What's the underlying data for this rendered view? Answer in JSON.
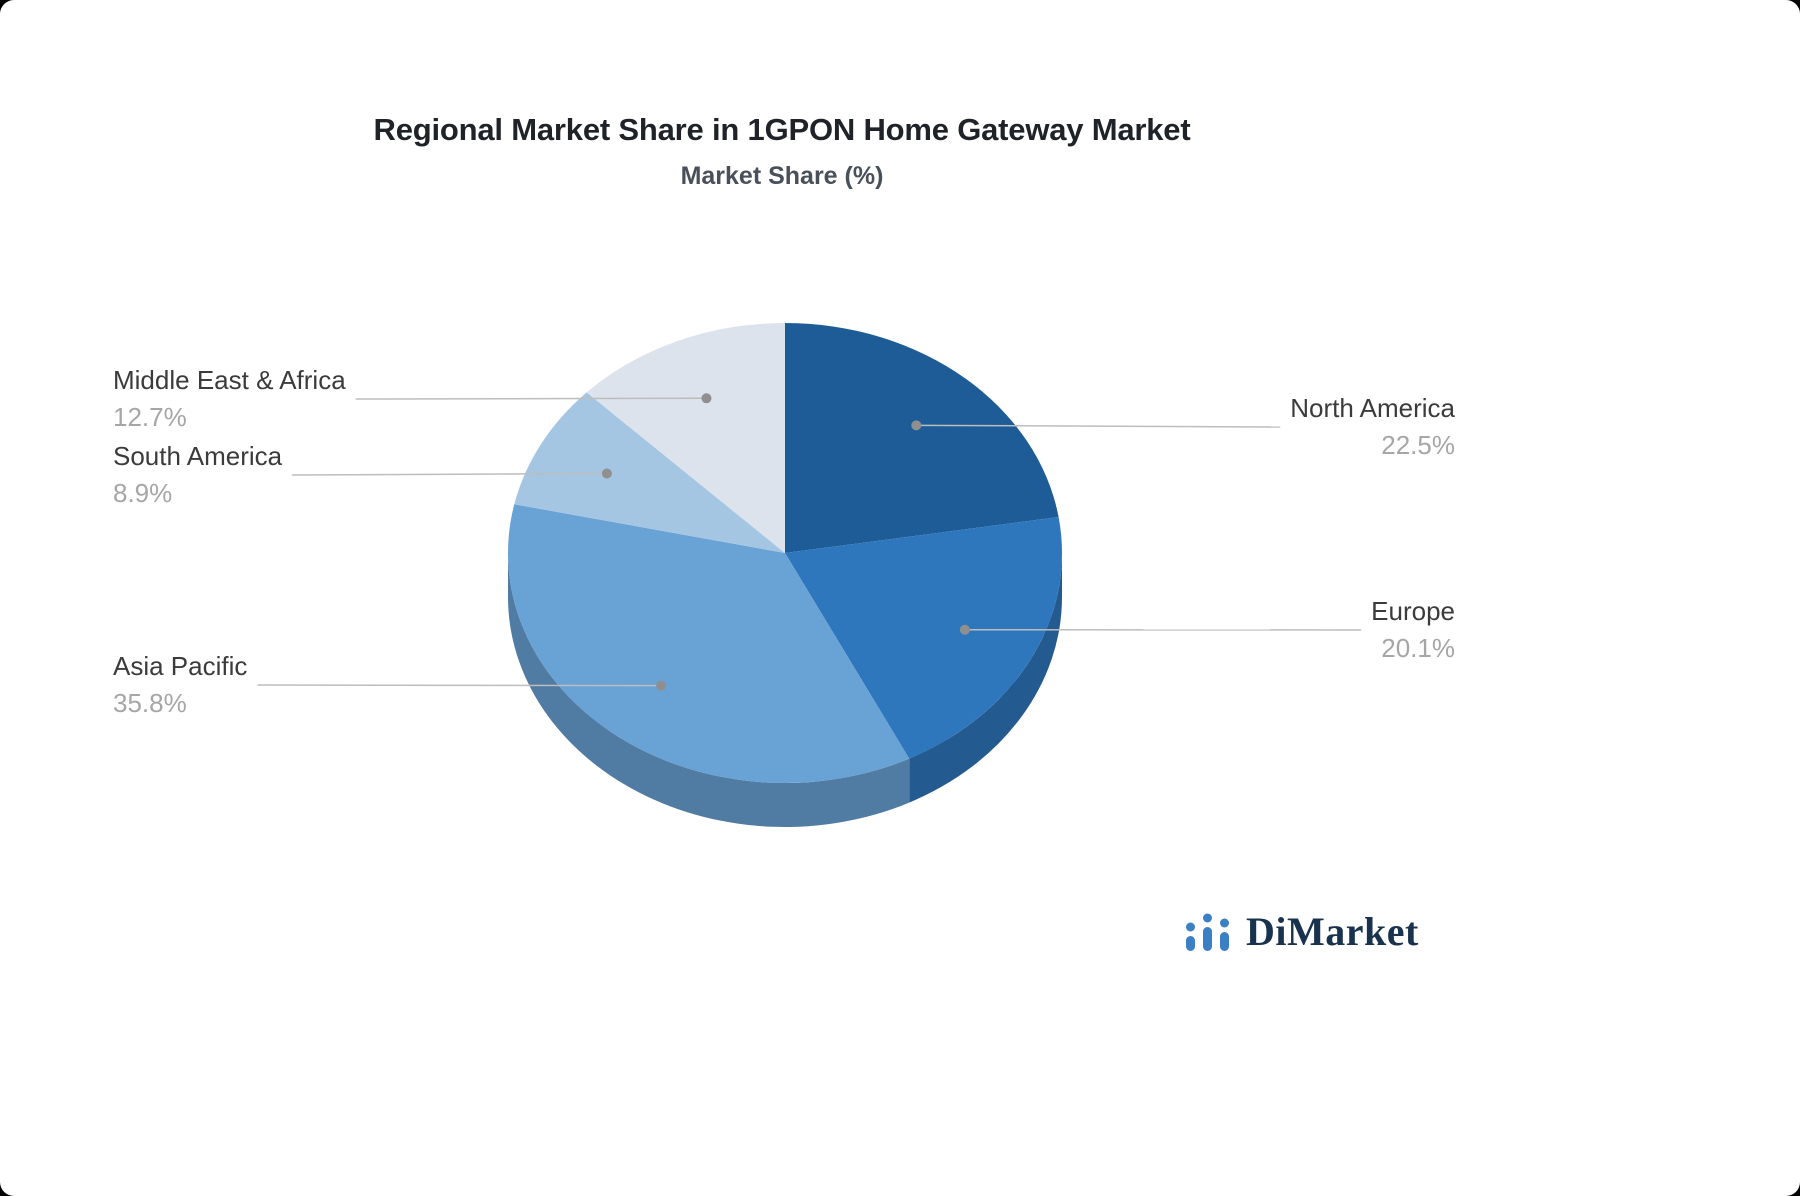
{
  "header": {
    "title": "Regional Market Share in 1GPON Home Gateway Market",
    "subtitle": "Market Share (%)"
  },
  "chart_data": {
    "type": "pie",
    "title": "Regional Market Share in 1GPON Home Gateway Market",
    "subtitle": "Market Share (%)",
    "unit": "%",
    "style": "3d-pie",
    "direction": "clockwise",
    "start_angle": "12-o-clock",
    "slices": [
      {
        "name": "North America",
        "value": 22.5,
        "label": "22.5%",
        "color": "#1e5c98"
      },
      {
        "name": "Europe",
        "value": 20.1,
        "label": "20.1%",
        "color": "#2e77bd"
      },
      {
        "name": "Asia Pacific",
        "value": 35.8,
        "label": "35.8%",
        "color": "#69a2d5"
      },
      {
        "name": "South America",
        "value": 8.9,
        "label": "8.9%",
        "color": "#a5c6e3"
      },
      {
        "name": "Middle East & Africa",
        "value": 12.7,
        "label": "12.7%",
        "color": "#dce3ed"
      }
    ],
    "leader_line_color": "#bdbdbd",
    "leader_dot_color": "#8f8f8f"
  },
  "branding": {
    "name": "DiMarket",
    "icon": "bar-chart-icon",
    "icon_color": "#3b7fc4",
    "text_color": "#19334f"
  }
}
